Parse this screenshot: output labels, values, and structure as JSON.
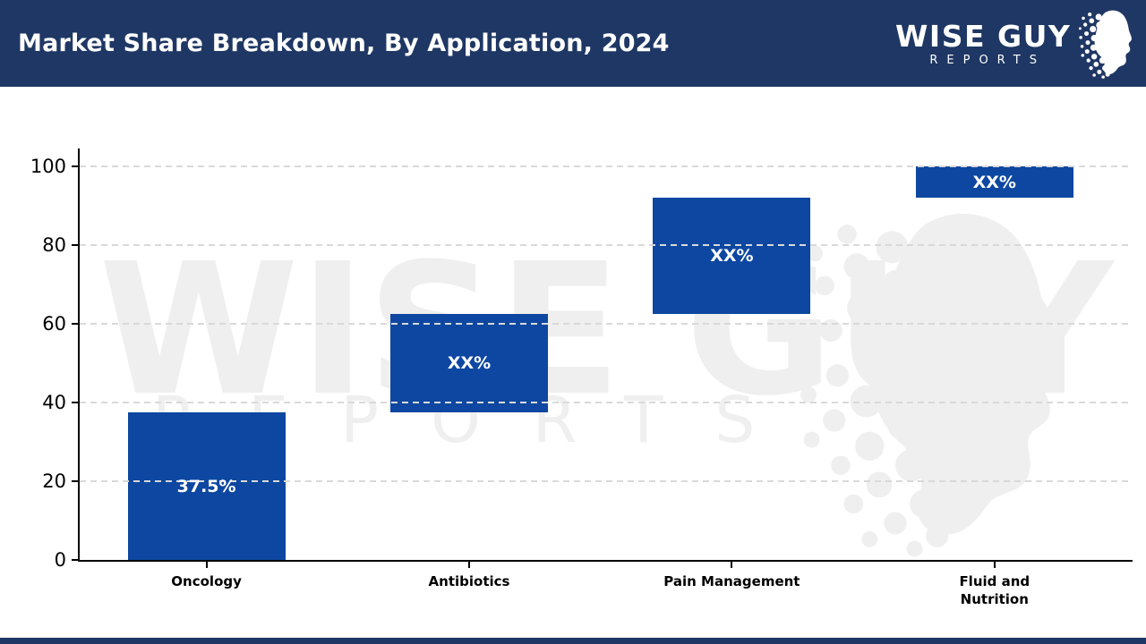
{
  "header": {
    "title": "Market Share Breakdown, By Application, 2024"
  },
  "logo": {
    "line1": "WISE GUY",
    "line2": "REPORTS"
  },
  "watermark": {
    "line1": "WISE GUY",
    "line2": "REPORTS"
  },
  "colors": {
    "header_bg": "#1f3764",
    "footer_bg": "#1f3764",
    "bar": "#0d47a1",
    "grid": "#d9d9d9",
    "watermark": "#efefef",
    "bar_label": "#ffffff",
    "axis": "#000000"
  },
  "chart_data": {
    "type": "bar",
    "subtype": "waterfall",
    "title": "Market Share Breakdown, By Application, 2024",
    "categories": [
      "Oncology",
      "Antibiotics",
      "Pain Management",
      "Fluid and\nNutrition"
    ],
    "bars": [
      {
        "category": "Oncology",
        "start": 0,
        "end": 37.5,
        "label": "37.5%"
      },
      {
        "category": "Antibiotics",
        "start": 37.5,
        "end": 62.5,
        "label": "XX%"
      },
      {
        "category": "Pain Management",
        "start": 62.5,
        "end": 92,
        "label": "XX%"
      },
      {
        "category": "Fluid and\nNutrition",
        "start": 92,
        "end": 100,
        "label": "XX%"
      }
    ],
    "yticks": [
      0,
      20,
      40,
      60,
      80,
      100
    ],
    "ylim": [
      0,
      105
    ],
    "grid": "horizontal-dashed",
    "legend": null
  }
}
